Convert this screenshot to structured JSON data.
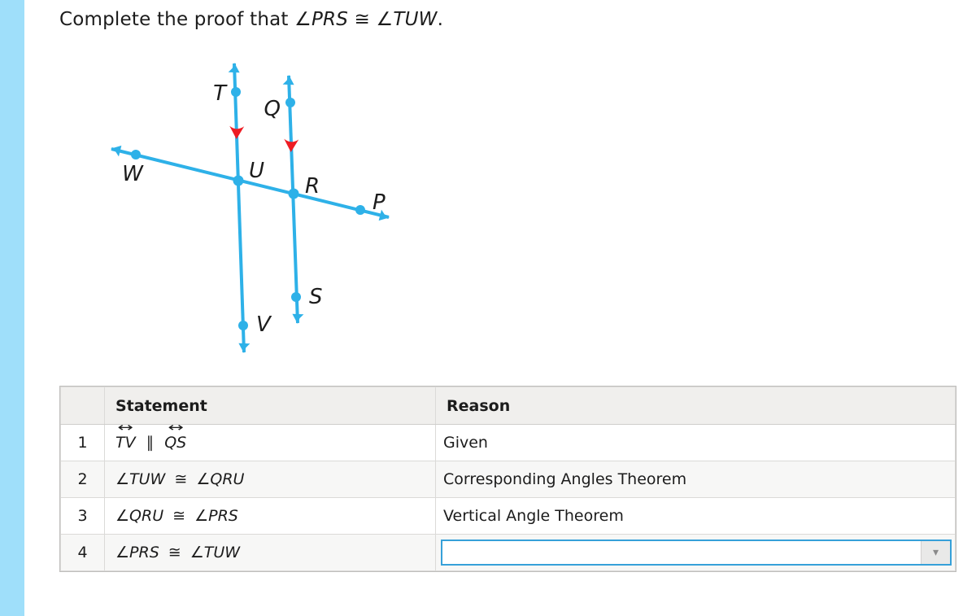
{
  "colors": {
    "line": "#2eb1e8",
    "mark": "#ee1c23",
    "sidebar": "#9fdffa",
    "ddborder": "#36a0d9",
    "headerbg": "#f0efed",
    "rowalt": "#f7f7f6"
  },
  "title": {
    "prefix": "Complete the proof that ",
    "math": "∠PRS ≅ ∠TUW",
    "suffix": "."
  },
  "diagram": {
    "labels": {
      "T": "T",
      "Q": "Q",
      "W": "W",
      "U": "U",
      "R": "R",
      "P": "P",
      "S": "S",
      "V": "V"
    },
    "parallel_mark_icon": "down-arrowhead",
    "line_arrow_icon": "ray-arrowhead"
  },
  "table": {
    "headers": {
      "number": "",
      "statement": "Statement",
      "reason": "Reason"
    },
    "dropdown_icon": "▾",
    "rows": [
      {
        "num": "1",
        "statement_parts": [
          {
            "text": "TV",
            "overarrow": "↔"
          },
          {
            "text": "∥",
            "sep": true
          },
          {
            "text": "QS",
            "overarrow": "↔"
          }
        ],
        "reason": "Given"
      },
      {
        "num": "2",
        "statement_parts": [
          {
            "text": "∠TUW ≅ ∠QRU"
          }
        ],
        "reason": "Corresponding Angles Theorem"
      },
      {
        "num": "3",
        "statement_parts": [
          {
            "text": "∠QRU ≅ ∠PRS"
          }
        ],
        "reason": "Vertical Angle Theorem"
      },
      {
        "num": "4",
        "statement_parts": [
          {
            "text": "∠PRS ≅ ∠TUW"
          }
        ],
        "reason": "",
        "dropdown": true,
        "dropdown_value": ""
      }
    ]
  }
}
